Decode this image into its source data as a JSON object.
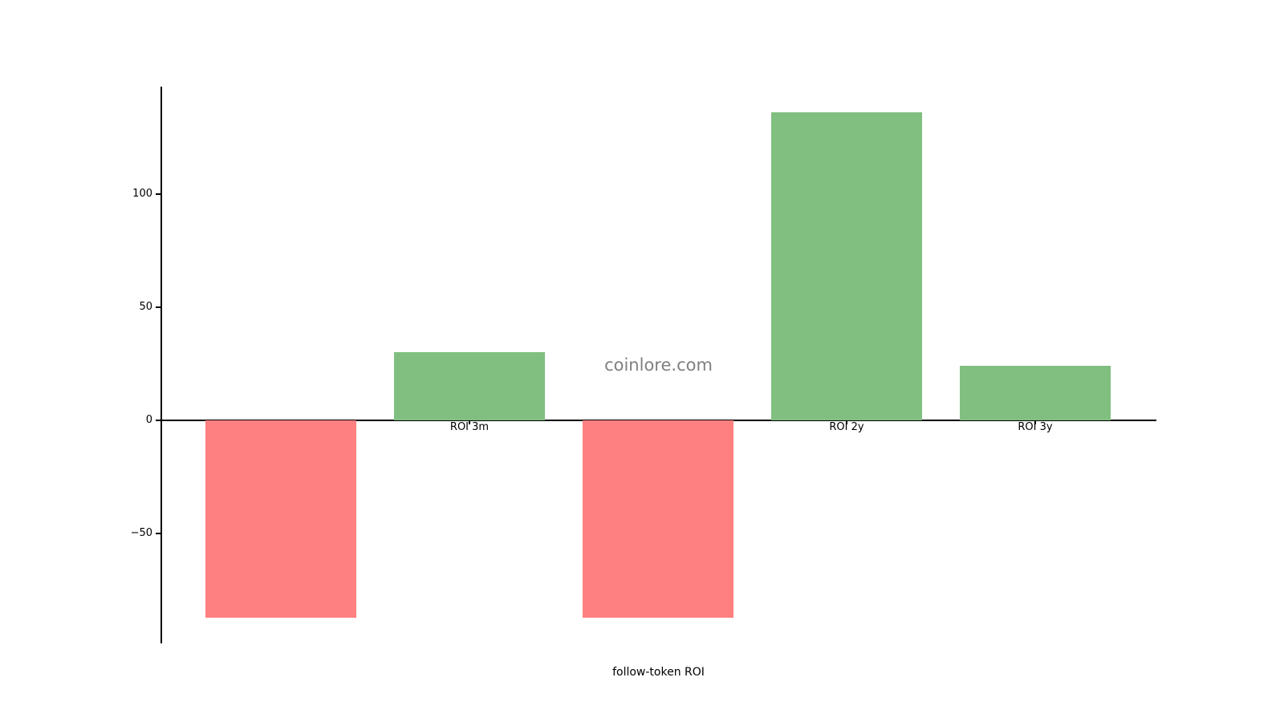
{
  "page": {
    "background": "#ffffff"
  },
  "watermark": {
    "text": "coinlore.com",
    "color": "#808080"
  },
  "chart_data": {
    "type": "bar",
    "title": "",
    "xlabel": "follow-token ROI",
    "ylabel": "",
    "categories": [
      "",
      "ROI 3m",
      "",
      "ROI 2y",
      "ROI 3y"
    ],
    "values": [
      -87,
      30,
      -87,
      136,
      24
    ],
    "yticks": [
      {
        "value": 100,
        "label": "100"
      },
      {
        "value": 50,
        "label": "50"
      },
      {
        "value": 0,
        "label": "0"
      },
      {
        "value": -50,
        "label": "−50"
      }
    ],
    "ylim": [
      -98.5,
      147.5
    ],
    "grid": false,
    "legend": null,
    "colors": {
      "positive_bar": "#80bf80",
      "negative_bar": "#ff8080",
      "axis": "#000000"
    }
  }
}
